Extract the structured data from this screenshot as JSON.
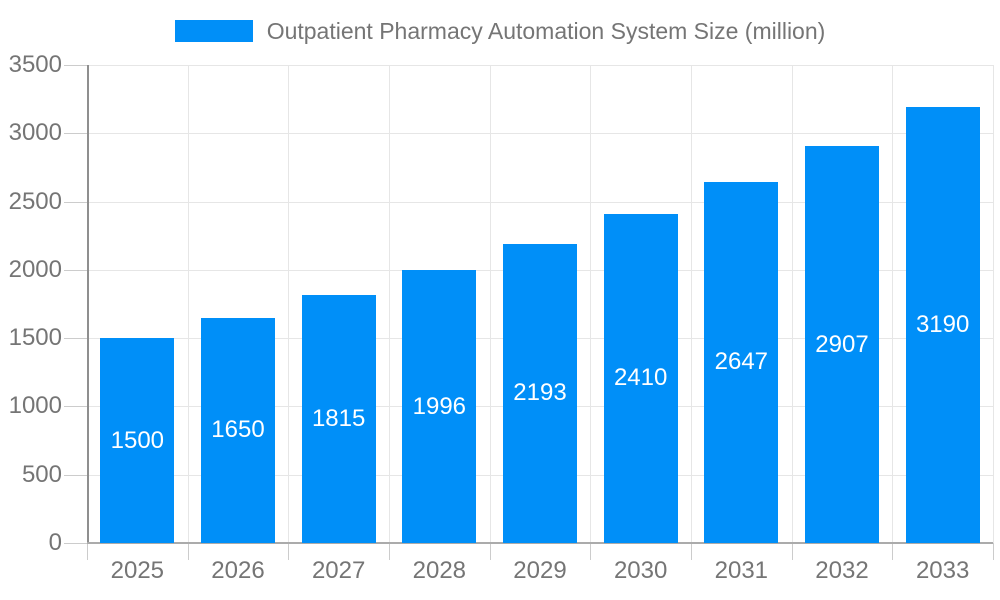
{
  "legend": {
    "label": "Outpatient Pharmacy Automation System Size (million)"
  },
  "chart_data": {
    "type": "bar",
    "title": "Outpatient Pharmacy Automation System Size (million)",
    "series_name": "Outpatient Pharmacy Automation System Size (million)",
    "categories": [
      "2025",
      "2026",
      "2027",
      "2028",
      "2029",
      "2030",
      "2031",
      "2032",
      "2033"
    ],
    "values": [
      1500,
      1650,
      1815,
      1996,
      2193,
      2410,
      2647,
      2907,
      3190
    ],
    "xlabel": "",
    "ylabel": "",
    "ylim": [
      0,
      3500
    ],
    "yticks": [
      0,
      500,
      1000,
      1500,
      2000,
      2500,
      3000,
      3500
    ],
    "grid": "horizontal and vertical gridlines on",
    "legend_position": "top-center",
    "value_labels": "centered inside bars"
  },
  "colors": {
    "bar": "#008ff8",
    "grid": "#e6e6e6",
    "tick": "#cccccc",
    "y_axis": "#8f8f8f",
    "x_axis": "#ababab",
    "text": "#757575",
    "value_label": "#ffffff",
    "background": "#ffffff"
  }
}
